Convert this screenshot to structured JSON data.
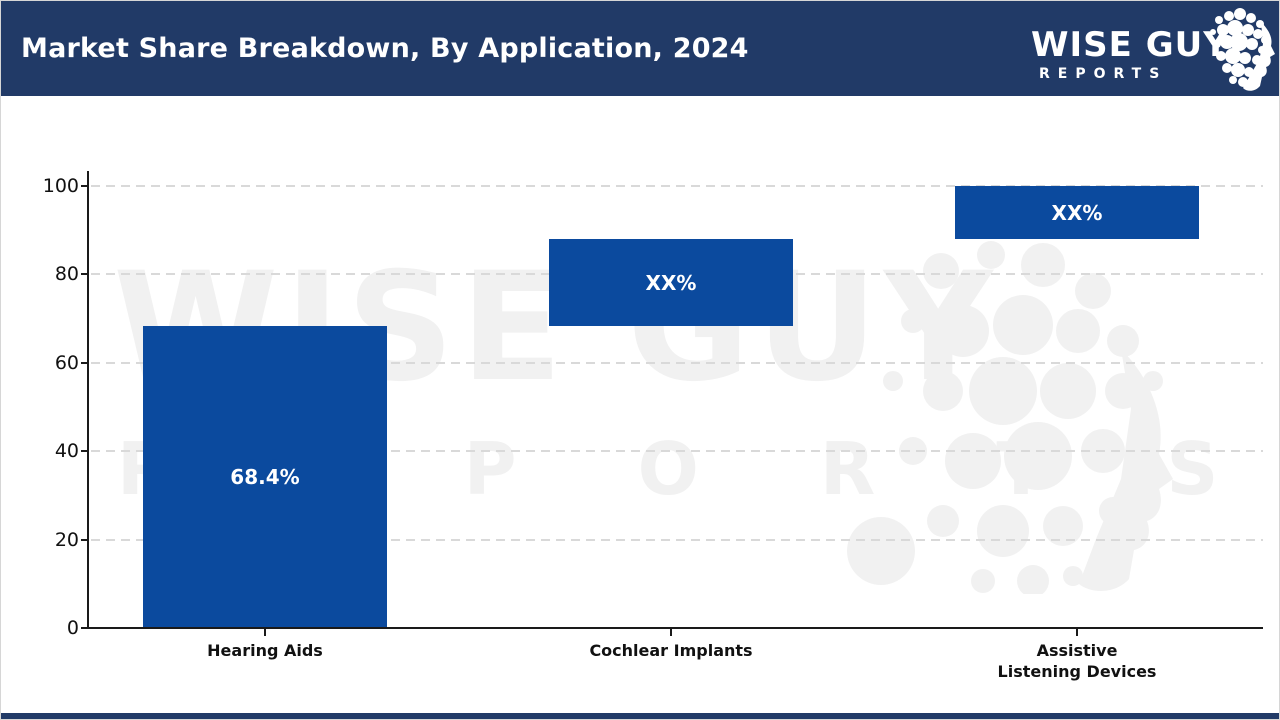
{
  "header": {
    "title": "Market Share Breakdown, By Application, 2024",
    "logo": {
      "name": "WISE GUY",
      "sub": "R E P O R T S"
    }
  },
  "watermark": {
    "line1": "WISE GUY",
    "line2": "R E P O R T S"
  },
  "chart_data": {
    "type": "bar",
    "subtype": "cumulative-stacked-percentage",
    "title": "Market Share Breakdown, By Application, 2024",
    "categories": [
      "Hearing Aids",
      "Cochlear Implants",
      "Assistive Listening Devices"
    ],
    "category_label_lines": [
      [
        "Hearing Aids"
      ],
      [
        "Cochlear Implants"
      ],
      [
        "Assistive",
        "Listening Devices"
      ]
    ],
    "segments": [
      {
        "category": "Hearing Aids",
        "start": 0,
        "end": 68.4,
        "label": "68.4%"
      },
      {
        "category": "Cochlear Implants",
        "start": 68.4,
        "end": 87.9,
        "label": "XX%"
      },
      {
        "category": "Assistive Listening Devices",
        "start": 87.9,
        "end": 100,
        "label": "XX%"
      }
    ],
    "ylim": [
      0,
      100
    ],
    "yticks": [
      0,
      20,
      40,
      60,
      80,
      100
    ],
    "grid": "horizontal-dashed",
    "legend": "none",
    "bar_color": "#0b4a9e",
    "bar_label_color": "#ffffff"
  },
  "colors": {
    "header_bg": "#213a67",
    "footer_bg": "#213a67",
    "bar": "#0b4a9e",
    "watermark": "#f1f1f1",
    "grid": "#d9d9d9",
    "axis": "#1a1a1a"
  }
}
